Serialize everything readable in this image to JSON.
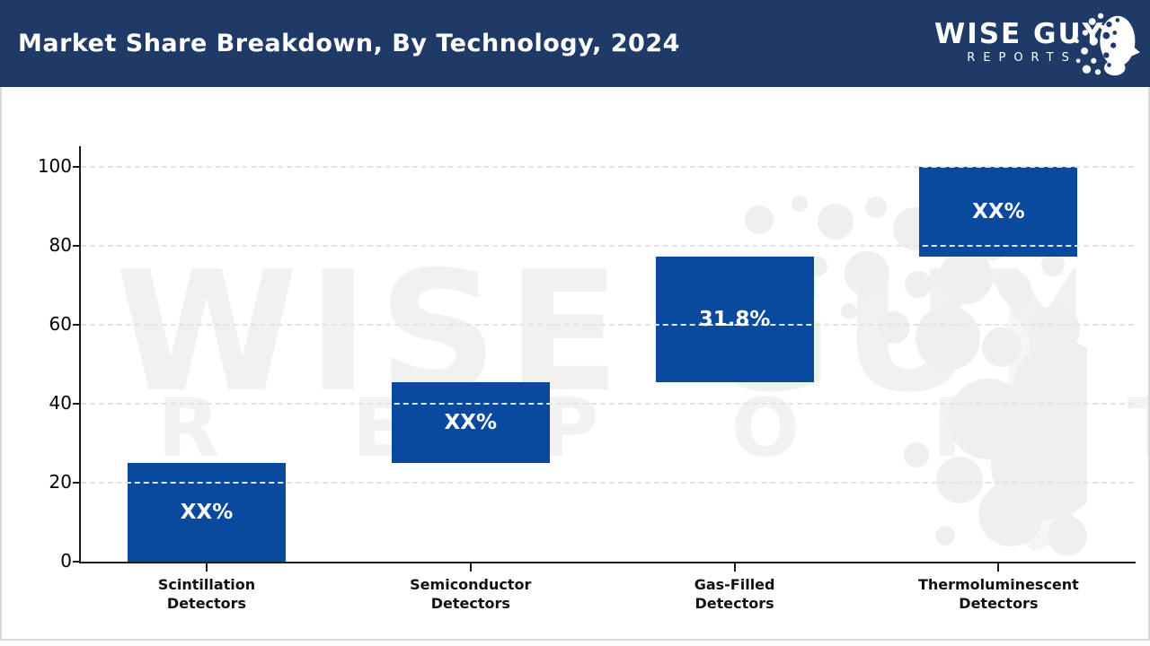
{
  "header": {
    "title": "Market Share Breakdown, By Technology, 2024",
    "logo": {
      "line1": "WISE GUY",
      "line2": "REPORTS"
    }
  },
  "watermark": {
    "line1": "WISE GUY",
    "line2": "R E P O R T S"
  },
  "colors": {
    "header_bg": "#203a68",
    "bar_blue": "#0a4a9e",
    "axis": "#1c1c1c",
    "gridline": "#e4e4e4",
    "frame_border": "#d9d9d9"
  },
  "chart_data": {
    "type": "bar",
    "subtype": "floating-waterfall",
    "title": "Market Share Breakdown, By Technology, 2024",
    "categories": [
      "Scintillation Detectors",
      "Semiconductor Detectors",
      "Gas-Filled Detectors",
      "Thermoluminescent Detectors"
    ],
    "categories_display": [
      "Scintillation\nDetectors",
      "Semiconductor\nDetectors",
      "Gas-Filled\nDetectors",
      "Thermoluminescent\nDetectors"
    ],
    "bars": [
      {
        "category": "Scintillation Detectors",
        "start": 0,
        "end": 25,
        "label": "XX%"
      },
      {
        "category": "Semiconductor Detectors",
        "start": 25,
        "end": 45.5,
        "label": "XX%"
      },
      {
        "category": "Gas-Filled Detectors",
        "start": 45.5,
        "end": 77.3,
        "label": "31.8%"
      },
      {
        "category": "Thermoluminescent Detectors",
        "start": 77.3,
        "end": 100,
        "label": "XX%"
      }
    ],
    "ylim": [
      0,
      100
    ],
    "yticks": [
      0,
      20,
      40,
      60,
      80,
      100
    ],
    "grid": "dashed-horizontal",
    "legend": "none",
    "bar_color": "#0a4a9e",
    "value_label_color": "#ffffff"
  }
}
